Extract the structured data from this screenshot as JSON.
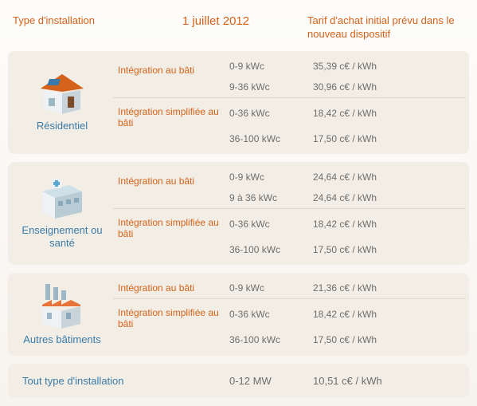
{
  "colors": {
    "orange": "#d4621a",
    "blue": "#3a7aa8",
    "grey": "#6d6d6d",
    "section_bg": "#f3eee5",
    "page_bg_top": "#fdfcfa",
    "page_bg_bottom": "#f7f4ef",
    "separator": "#e2d9c9"
  },
  "header": {
    "col_type": "Type d'installation",
    "col_date": "1 juillet 2012",
    "col_tarif": "Tarif d'achat initial prévu dans le nouveau dispositif"
  },
  "sections": [
    {
      "icon": "house",
      "label": "Résidentiel",
      "groups": [
        {
          "integration": "Intégration au bâti",
          "rows": [
            {
              "range": "0-9 kWc",
              "tarif": "35,39 c€ / kWh"
            },
            {
              "range": "9-36 kWc",
              "tarif": "30,96 c€ / kWh"
            }
          ]
        },
        {
          "integration": "Intégration simplifiée au bâti",
          "rows": [
            {
              "range": "0-36 kWc",
              "tarif": "18,42 c€ / kWh"
            },
            {
              "range": "36-100 kWc",
              "tarif": "17,50  c€ / kWh"
            }
          ]
        }
      ]
    },
    {
      "icon": "hospital",
      "label": "Enseignement ou santé",
      "groups": [
        {
          "integration": "Intégration au bâti",
          "rows": [
            {
              "range": "0-9 kWc",
              "tarif": "24,64  c€ / kWh"
            },
            {
              "range": "9 à 36 kWc",
              "tarif": "24,64  c€ / kWh"
            }
          ]
        },
        {
          "integration": "Intégration simplifiée au bâti",
          "rows": [
            {
              "range": "0-36 kWc",
              "tarif": "18,42 c€ / kWh"
            },
            {
              "range": "36-100 kWc",
              "tarif": "17,50  c€ / kWh"
            }
          ]
        }
      ]
    },
    {
      "icon": "factory",
      "label": "Autres bâtiments",
      "groups": [
        {
          "integration": "Intégration au bâti",
          "rows": [
            {
              "range": "0-9 kWc",
              "tarif": "21,36 c€ / kWh"
            }
          ]
        },
        {
          "integration": "Intégration simplifiée au bâti",
          "rows": [
            {
              "range": "0-36 kWc",
              "tarif": "18,42 c€ / kWh"
            },
            {
              "range": "36-100 kWc",
              "tarif": "17,50 c€ / kWh"
            }
          ]
        }
      ]
    }
  ],
  "final": {
    "label": "Tout type d'installation",
    "range": "0-12 MW",
    "tarif": "10,51  c€ / kWh"
  }
}
